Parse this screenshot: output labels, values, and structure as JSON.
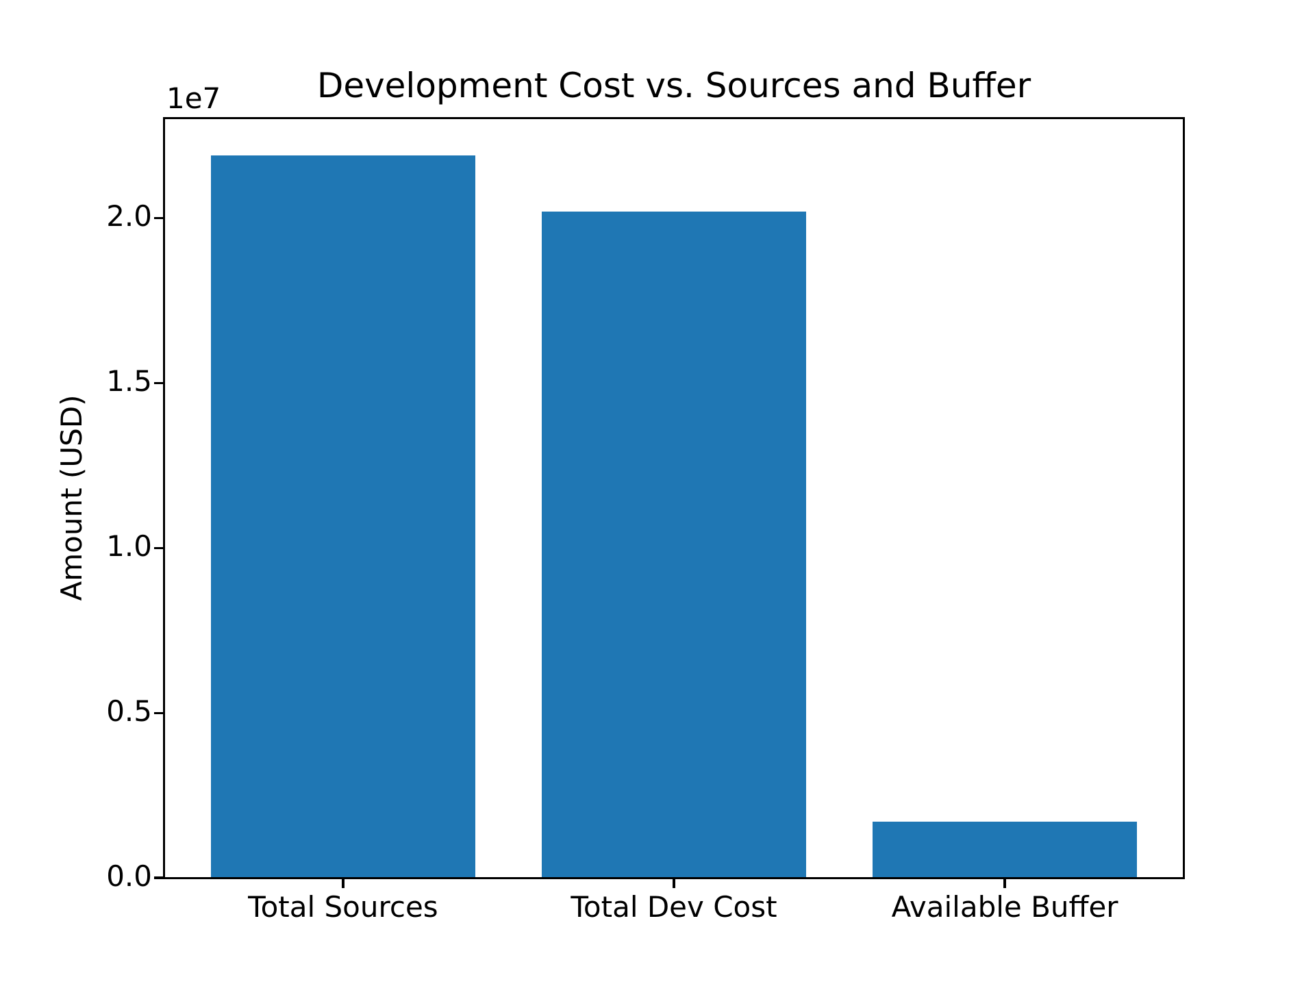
{
  "figure": {
    "title": "Development Cost vs. Sources and Buffer",
    "ylabel": "Amount (USD)",
    "offset_label": "1e7"
  },
  "chart_data": {
    "type": "bar",
    "title": "Development Cost vs. Sources and Buffer",
    "categories": [
      "Total Sources",
      "Total Dev Cost",
      "Available Buffer"
    ],
    "values": [
      21900000,
      20200000,
      1700000
    ],
    "xlabel": "",
    "ylabel": "Amount (USD)",
    "ylim": [
      0,
      23025000
    ],
    "xlim": [
      -0.54,
      2.54
    ],
    "yticks": {
      "values": [
        0,
        5000000,
        10000000,
        15000000,
        20000000
      ],
      "labels": [
        "0.0",
        "0.5",
        "1.0",
        "1.5",
        "2.0"
      ]
    },
    "offset_text": "1e7",
    "bar_color": "#1f77b4",
    "bar_width": 0.8,
    "grid": false,
    "legend": "none",
    "background_color": "#ffffff",
    "text_color": "#000000"
  }
}
